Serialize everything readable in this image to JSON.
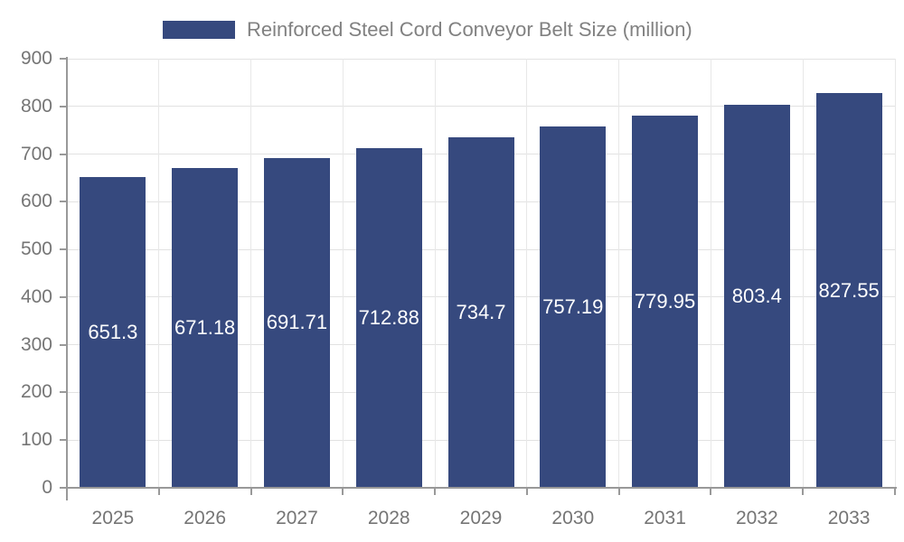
{
  "legend": {
    "label": "Reinforced Steel Cord Conveyor Belt Size (million)"
  },
  "chart_data": {
    "type": "bar",
    "title": "Reinforced Steel Cord Conveyor Belt Size (million)",
    "categories": [
      "2025",
      "2026",
      "2027",
      "2028",
      "2029",
      "2030",
      "2031",
      "2032",
      "2033"
    ],
    "values": [
      651.3,
      671.18,
      691.71,
      712.88,
      734.7,
      757.19,
      779.95,
      803.4,
      827.55
    ],
    "value_labels": [
      "651.3",
      "671.18",
      "691.71",
      "712.88",
      "734.7",
      "757.19",
      "779.95",
      "803.4",
      "827.55"
    ],
    "xlabel": "",
    "ylabel": "",
    "ylim": [
      0,
      900
    ],
    "yticks": [
      0,
      100,
      200,
      300,
      400,
      500,
      600,
      700,
      800,
      900
    ],
    "grid": true,
    "legend_position": "top",
    "bar_color": "#36497e",
    "bar_label_color": "#ffffff",
    "axis_text_color": "#757575",
    "axis_line_color": "#999999",
    "grid_line_color": "#e2e2e2",
    "background_color": "#ffffff"
  }
}
